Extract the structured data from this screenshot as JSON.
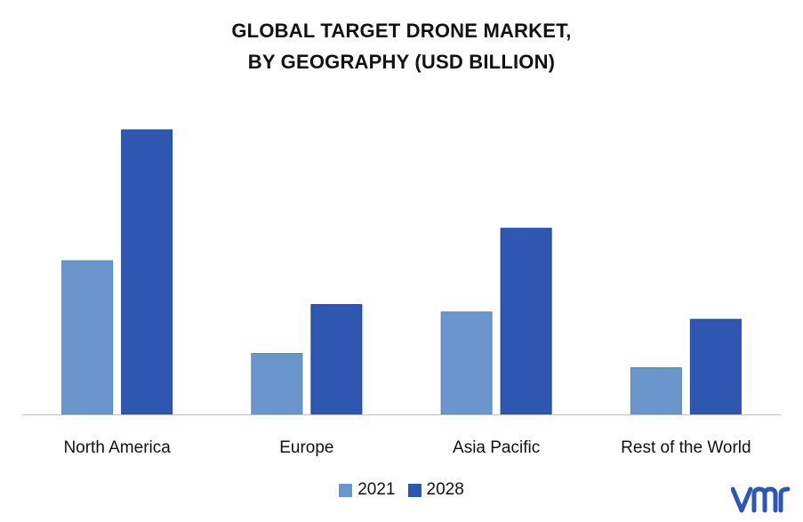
{
  "chart_data": {
    "type": "bar",
    "title_line1": "GLOBAL TARGET DRONE MARKET,",
    "title_line2": "BY GEOGRAPHY (USD BILLION)",
    "categories": [
      "North America",
      "Europe",
      "Asia Pacific",
      "Rest of the World"
    ],
    "series": [
      {
        "name": "2021",
        "values": [
          2.7,
          1.07,
          1.8,
          0.82
        ],
        "color": "#6a96cc"
      },
      {
        "name": "2028",
        "values": [
          5.0,
          1.93,
          3.27,
          1.67
        ],
        "color": "#2f56b0"
      }
    ],
    "ylim": [
      0,
      5.5
    ],
    "grid": false,
    "legend": "bottom-center"
  },
  "logo": {
    "text": "vmr",
    "color": "#2f56b0"
  }
}
